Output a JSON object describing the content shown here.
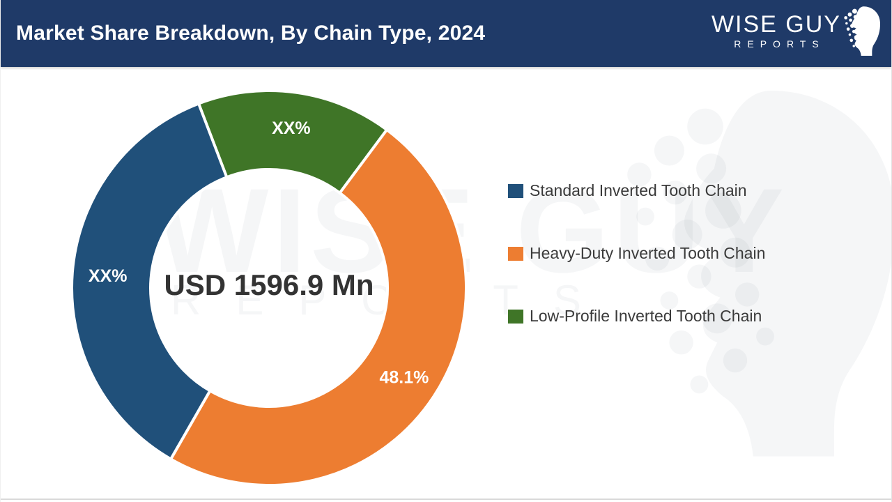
{
  "header": {
    "title": "Market Share Breakdown, By Chain Type, 2024",
    "logo": {
      "line1": "WISE GUY",
      "line2": "REPORTS"
    }
  },
  "chart_data": {
    "type": "donut",
    "title": "Market Share Breakdown, By Chain Type, 2024",
    "center_label": "USD 1596.9 Mn",
    "unit": "percent",
    "rotation_deg": -20.9,
    "legend_position": "right",
    "segments": [
      {
        "name": "Low-Profile Inverted Tooth Chain",
        "value": 16.0,
        "display_label": "XX%",
        "color": "#3f7527"
      },
      {
        "name": "Heavy-Duty Inverted Tooth Chain",
        "value": 48.1,
        "display_label": "48.1%",
        "color": "#ed7d31"
      },
      {
        "name": "Standard Inverted Tooth Chain",
        "value": 35.9,
        "display_label": "XX%",
        "color": "#20507a"
      }
    ]
  },
  "legend": {
    "items": [
      {
        "label": "Standard Inverted Tooth Chain",
        "color": "#20507a"
      },
      {
        "label": "Heavy-Duty Inverted Tooth Chain",
        "color": "#ed7d31"
      },
      {
        "label": "Low-Profile Inverted Tooth Chain",
        "color": "#3f7527"
      }
    ]
  },
  "watermark": {
    "line1": "WISE GUY",
    "line2": "REPORTS"
  },
  "colors": {
    "header_bg": "#1f3a68",
    "center_text": "#333333",
    "legend_text": "#3a3a3a",
    "separator": "#ffffff",
    "border_line": "#d9d9d9"
  }
}
